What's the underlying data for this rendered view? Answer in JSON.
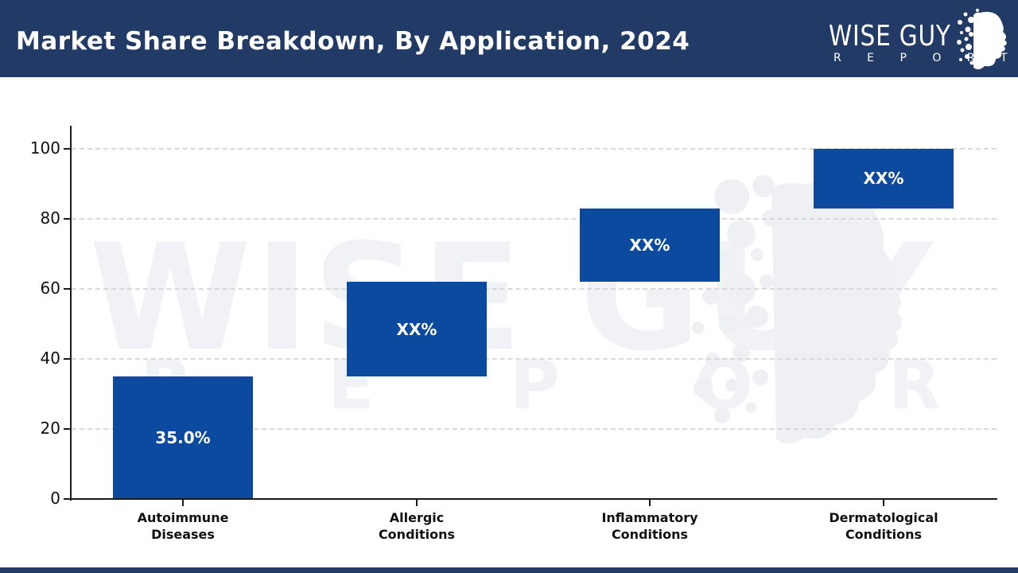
{
  "header": {
    "title": "Market Share Breakdown, By Application, 2024",
    "bg_color": "#213a66",
    "logo_line1": "WISE GUY",
    "logo_line2": "R E P O R T S"
  },
  "watermark": {
    "line1": "WISE GUY",
    "line2": "R E P O R T S"
  },
  "chart_data": {
    "type": "bar",
    "subtype": "stacked-waterfall",
    "title": "Market Share Breakdown, By Application, 2024",
    "categories": [
      {
        "line1": "Autoimmune",
        "line2": "Diseases"
      },
      {
        "line1": "Allergic",
        "line2": "Conditions"
      },
      {
        "line1": "Inflammatory",
        "line2": "Conditions"
      },
      {
        "line1": "Dermatological",
        "line2": "Conditions"
      }
    ],
    "series": [
      {
        "name": "Autoimmune Diseases",
        "start": 0,
        "end": 35,
        "label": "35.0%"
      },
      {
        "name": "Allergic Conditions",
        "start": 35,
        "end": 62,
        "label": "XX%"
      },
      {
        "name": "Inflammatory Conditions",
        "start": 62,
        "end": 83,
        "label": "XX%"
      },
      {
        "name": "Dermatological Conditions",
        "start": 83,
        "end": 100,
        "label": "XX%"
      }
    ],
    "yticks": [
      0,
      20,
      40,
      60,
      80,
      100
    ],
    "ylim": [
      0,
      107
    ],
    "bar_color": "#0b4a9e",
    "grid": "horizontal-dashed",
    "gridline_color": "#d9d9d9",
    "axis_color": "#1a1a1a"
  }
}
